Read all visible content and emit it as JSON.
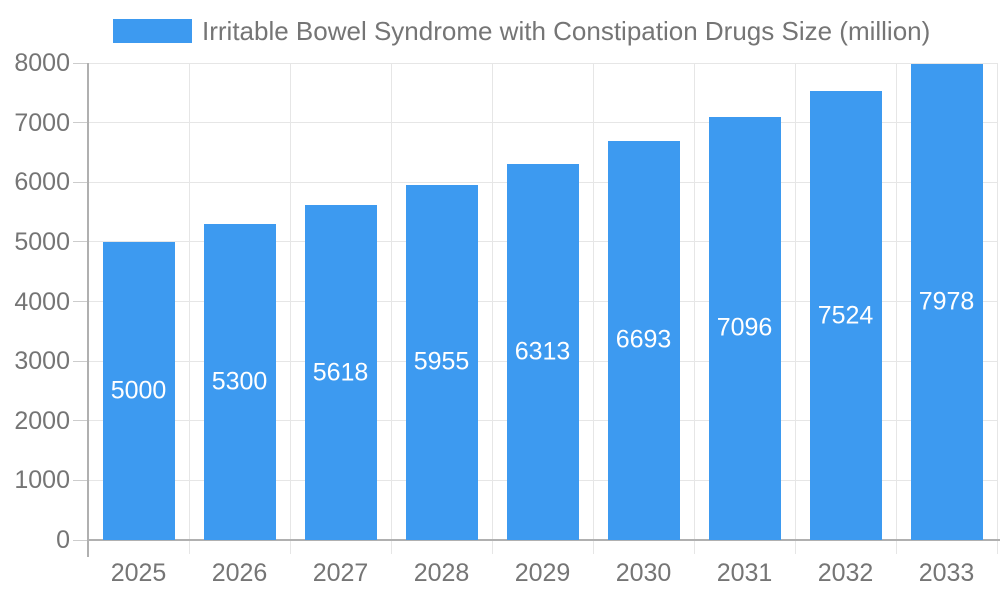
{
  "chart_data": {
    "type": "bar",
    "title": "Irritable Bowel Syndrome with Constipation Drugs Size (million)",
    "categories": [
      "2025",
      "2026",
      "2027",
      "2028",
      "2029",
      "2030",
      "2031",
      "2032",
      "2033"
    ],
    "values": [
      5000,
      5300,
      5618,
      5955,
      6313,
      6693,
      7096,
      7524,
      7978
    ],
    "value_labels": [
      "5000",
      "5300",
      "5618",
      "5955",
      "6313",
      "6693",
      "7096",
      "7524",
      "7978"
    ],
    "xlabel": "",
    "ylabel": "",
    "ylim": [
      0,
      8000
    ],
    "yticks": [
      0,
      1000,
      2000,
      3000,
      4000,
      5000,
      6000,
      7000,
      8000
    ],
    "ytick_labels": [
      "0",
      "1000",
      "2000",
      "3000",
      "4000",
      "5000",
      "6000",
      "7000",
      "8000"
    ],
    "grid": true,
    "legend_position": "top"
  },
  "legend": {
    "label": "Irritable Bowel Syndrome with Constipation Drugs Size (million)"
  },
  "colors": {
    "bar": "#3d9af0",
    "axis_text": "#757575",
    "grid_line": "#e6e6e6",
    "axis_line": "#b0b0b0",
    "tick": "#cccccc",
    "value_label": "#ffffff",
    "background": "#ffffff"
  }
}
